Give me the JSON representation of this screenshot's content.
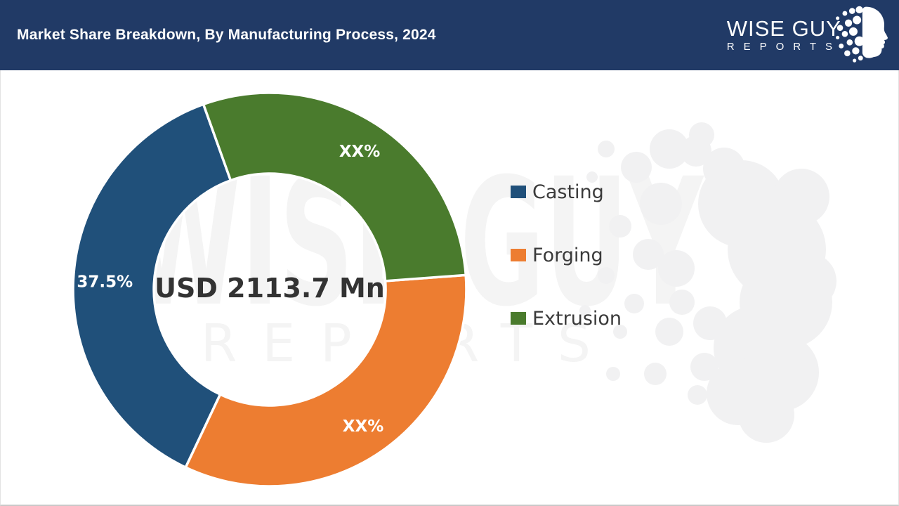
{
  "header": {
    "title": "Market Share Breakdown, By Manufacturing Process, 2024",
    "logo": {
      "line1": "WISE GUY",
      "line2": "REPORTS"
    }
  },
  "watermark": {
    "line1": "WISE GUY",
    "line2": "REPORTS"
  },
  "chart_data": {
    "type": "pie",
    "subtype": "donut",
    "title": "Market Share Breakdown, By Manufacturing Process, 2024",
    "center_label": "USD 2113.7 Mn",
    "series": [
      {
        "name": "Casting",
        "value": 37.5,
        "display_label": "37.5%",
        "color": "#20507A"
      },
      {
        "name": "Forging",
        "value": 33.2,
        "display_label": "XX%",
        "color": "#ED7D31"
      },
      {
        "name": "Extrusion",
        "value": 29.3,
        "display_label": "XX%",
        "color": "#4A7B2D"
      }
    ],
    "start_angle_deg": 109.7,
    "inner_radius_ratio": 0.59,
    "legend_position": "right",
    "label_color": "#ffffff"
  },
  "colors": {
    "header_bg": "#213A66",
    "center_text": "#333333",
    "legend_text": "#3A3A3A",
    "watermark": "#f4f4f4"
  }
}
